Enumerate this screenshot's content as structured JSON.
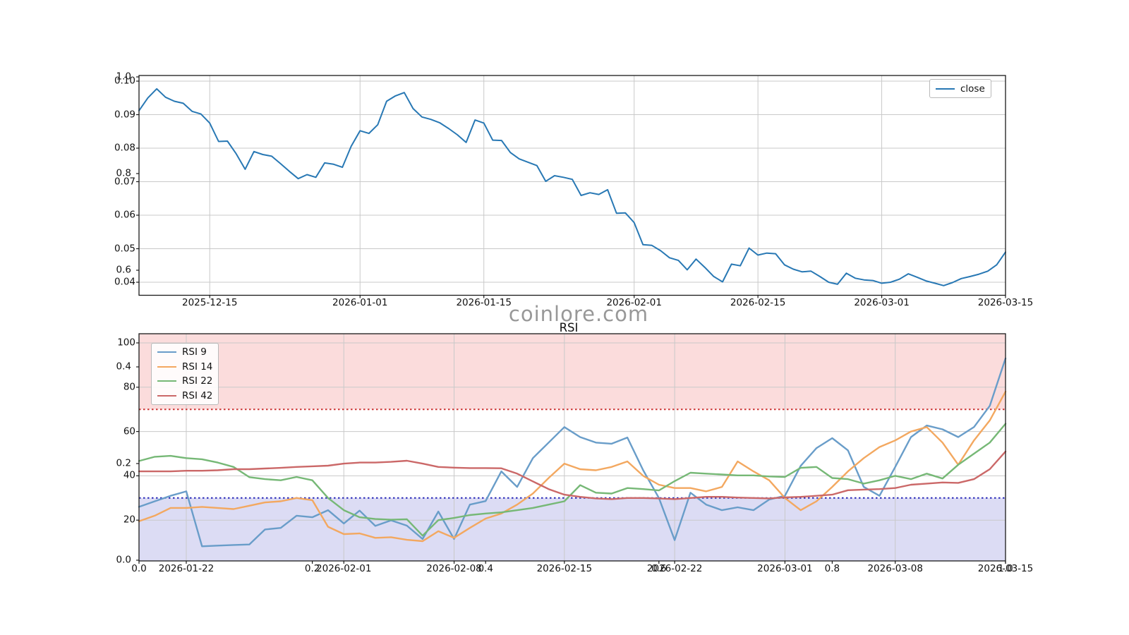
{
  "watermark": "coinlore.com",
  "figure_axis": {
    "xticks": [
      "0.0",
      "0.2",
      "0.4",
      "0.6",
      "0.8",
      "1.0"
    ],
    "yticks": [
      "0.0",
      "0.2",
      "0.4",
      "0.6",
      "0.8",
      "1.0"
    ]
  },
  "chart_data": [
    {
      "type": "line",
      "panel": "price",
      "title": "",
      "xlabel": "",
      "ylabel": "",
      "legend_position": "upper right",
      "grid": true,
      "x_start_date": "2025-12-07",
      "x_end_date": "2026-03-15",
      "ylim": [
        0.0365,
        0.1035
      ],
      "yticks": [
        "0.04",
        "0.05",
        "0.06",
        "0.07",
        "0.08",
        "0.09",
        "0.10"
      ],
      "xticks": [
        {
          "label": "2025-12-15",
          "i": 8
        },
        {
          "label": "2026-01-01",
          "i": 25
        },
        {
          "label": "2026-01-15",
          "i": 39
        },
        {
          "label": "2026-02-01",
          "i": 56
        },
        {
          "label": "2026-02-15",
          "i": 70
        },
        {
          "label": "2026-03-01",
          "i": 84
        },
        {
          "label": "2026-03-15",
          "i": 98
        }
      ],
      "series": [
        {
          "name": "close",
          "color": "#2878b4",
          "width": 2,
          "values": [
            0.0912,
            0.095,
            0.0977,
            0.0952,
            0.094,
            0.0934,
            0.091,
            0.0902,
            0.0875,
            0.082,
            0.0821,
            0.0783,
            0.0737,
            0.079,
            0.0781,
            0.0776,
            0.0754,
            0.0731,
            0.0709,
            0.0721,
            0.0713,
            0.0756,
            0.0752,
            0.0743,
            0.0806,
            0.0852,
            0.0844,
            0.087,
            0.094,
            0.0956,
            0.0966,
            0.0918,
            0.0893,
            0.0886,
            0.0876,
            0.0859,
            0.084,
            0.0817,
            0.0884,
            0.0875,
            0.0824,
            0.0823,
            0.0787,
            0.0768,
            0.0758,
            0.0748,
            0.0701,
            0.0718,
            0.0713,
            0.0707,
            0.0659,
            0.0667,
            0.0662,
            0.0676,
            0.0606,
            0.0607,
            0.0578,
            0.0512,
            0.051,
            0.0494,
            0.0473,
            0.0465,
            0.0437,
            0.0469,
            0.0444,
            0.0417,
            0.0401,
            0.0454,
            0.0449,
            0.0502,
            0.0481,
            0.0487,
            0.0485,
            0.0452,
            0.0439,
            0.0431,
            0.0433,
            0.0417,
            0.04,
            0.0394,
            0.0427,
            0.0412,
            0.0407,
            0.0405,
            0.0397,
            0.04,
            0.0409,
            0.0425,
            0.0415,
            0.0404,
            0.0397,
            0.039,
            0.0399,
            0.0411,
            0.0417,
            0.0424,
            0.0433,
            0.0452,
            0.049
          ]
        }
      ]
    },
    {
      "type": "line",
      "panel": "rsi",
      "title": "RSI",
      "xlabel": "",
      "ylabel": "",
      "legend_position": "upper left",
      "grid": true,
      "x_start_date": "2026-01-19",
      "x_end_date": "2026-03-15",
      "ylim": [
        0,
        100
      ],
      "yticks": [
        "20",
        "40",
        "60",
        "80",
        "100"
      ],
      "xticks": [
        {
          "label": "2026-01-22",
          "i": 3
        },
        {
          "label": "2026-02-01",
          "i": 13
        },
        {
          "label": "2026-02-08",
          "i": 20
        },
        {
          "label": "2026-02-15",
          "i": 27
        },
        {
          "label": "2026-02-22",
          "i": 34
        },
        {
          "label": "2026-03-01",
          "i": 41
        },
        {
          "label": "2026-03-08",
          "i": 48
        },
        {
          "label": "2026-03-15",
          "i": 55
        }
      ],
      "overbought_level": 70,
      "oversold_level": 30,
      "overbought_band_color": "#fbdcdc",
      "oversold_band_color": "#dcdcf4",
      "overbought_line_color": "#cc3333",
      "oversold_line_color": "#2929b8",
      "series": [
        {
          "name": "RSI 9",
          "color": "#699dc9",
          "width": 2.4,
          "values": [
            26,
            28.5,
            31,
            33,
            8.2,
            8.5,
            8.8,
            9,
            15.8,
            16.5,
            22,
            21.3,
            24.5,
            18.5,
            24.3,
            17.4,
            19.9,
            17.5,
            11.5,
            23.9,
            11.5,
            27,
            28.6,
            42,
            35,
            48,
            55,
            62,
            57.5,
            55,
            54.5,
            57.3,
            42.5,
            30,
            11,
            32.4,
            27,
            24.5,
            25.8,
            24.5,
            29.3,
            31,
            44.5,
            52.5,
            57,
            51.5,
            35,
            31,
            44,
            57.5,
            62.7,
            61,
            57.5,
            62,
            71.6,
            93
          ]
        },
        {
          "name": "RSI 14",
          "color": "#f3a860",
          "width": 2.4,
          "values": [
            19.5,
            22,
            25.5,
            25.5,
            26,
            25.5,
            25,
            26.5,
            28,
            28.5,
            30,
            29,
            17,
            13.7,
            14,
            12,
            12.3,
            11.1,
            10.5,
            15,
            12,
            16.5,
            20.7,
            23,
            27,
            32,
            39,
            45.5,
            43,
            42.5,
            44,
            46.5,
            40,
            36,
            34.5,
            34.5,
            33,
            35,
            46.5,
            42,
            38,
            30,
            24.5,
            28.5,
            35,
            42,
            48,
            53,
            56,
            60,
            62,
            55,
            45,
            56,
            65,
            78
          ]
        },
        {
          "name": "RSI 22",
          "color": "#76b876",
          "width": 2.4,
          "values": [
            46.7,
            48.6,
            49,
            48,
            47.5,
            46,
            44,
            39.4,
            38.5,
            38,
            39.5,
            38,
            30,
            24.5,
            21.3,
            20.5,
            20.2,
            20.4,
            13,
            20,
            21,
            22.3,
            23,
            23.5,
            24.5,
            25.5,
            27,
            28.5,
            35.8,
            32.4,
            32,
            34.5,
            34,
            33.4,
            37.6,
            41.4,
            41,
            40.6,
            40.2,
            40.2,
            39.7,
            39.5,
            43.6,
            44,
            39,
            38.5,
            36.5,
            38,
            40,
            38.5,
            41,
            38.8,
            45,
            50,
            55,
            63.5
          ]
        },
        {
          "name": "RSI 42",
          "color": "#cb6868",
          "width": 2.4,
          "values": [
            42,
            42,
            42,
            42.3,
            42.3,
            42.5,
            43,
            43,
            43.3,
            43.6,
            44,
            44.3,
            44.6,
            45.5,
            46,
            46,
            46.3,
            46.8,
            45.5,
            44,
            43.7,
            43.5,
            43.5,
            43.4,
            41,
            37.5,
            34,
            31.5,
            30.5,
            29.8,
            29.5,
            30,
            30,
            29.8,
            29.5,
            30,
            30.5,
            30.5,
            30.2,
            30,
            29.8,
            30.3,
            30.5,
            31,
            31.5,
            33.5,
            33.8,
            34,
            34.5,
            36,
            36.5,
            37,
            36.8,
            38.5,
            43,
            51
          ]
        }
      ]
    }
  ]
}
